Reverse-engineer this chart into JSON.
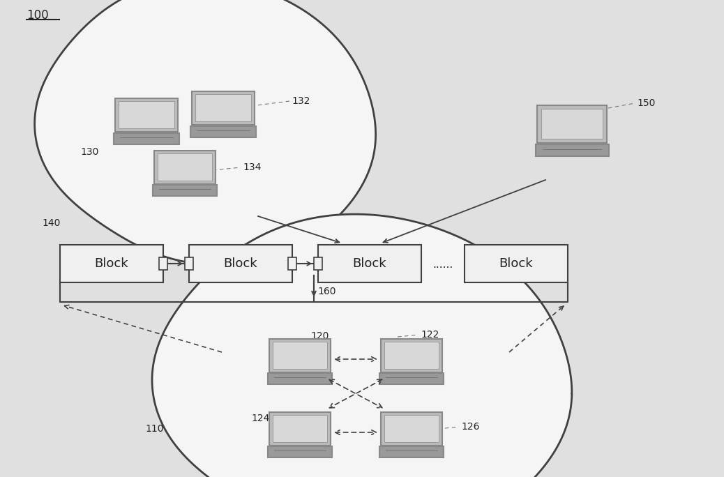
{
  "bg_color": "#e0e0e0",
  "cloud_fill": "#f5f5f5",
  "cloud_edge": "#404040",
  "block_fill": "#f0f0f0",
  "block_edge": "#404040",
  "arrow_color": "#404040",
  "text_color": "#222222",
  "laptop_body": "#888888",
  "laptop_screen_bg": "#bbbbbb",
  "laptop_screen_inner": "#d8d8d8",
  "laptop_base": "#999999",
  "label_100": "100",
  "label_140": "140",
  "label_130": "130",
  "label_132": "132",
  "label_134": "134",
  "label_150": "150",
  "label_160": "160",
  "label_110": "110",
  "label_120": "120",
  "label_122": "122",
  "label_124": "124",
  "label_126": "126",
  "block_label": "Block"
}
